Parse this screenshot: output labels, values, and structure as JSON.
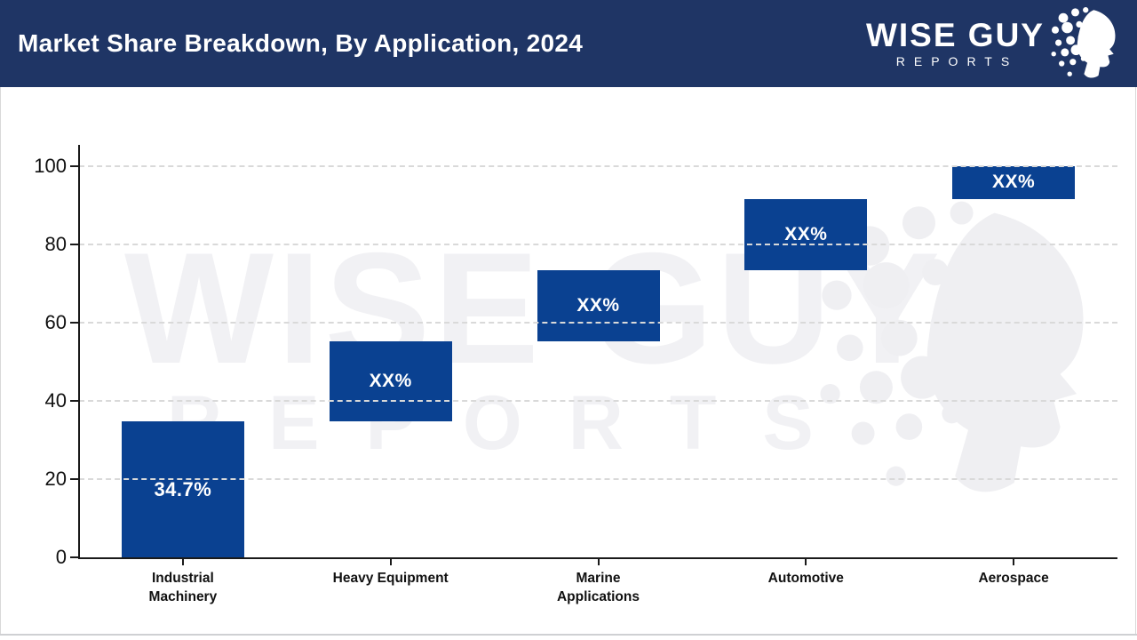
{
  "header": {
    "title": "Market Share Breakdown, By Application, 2024",
    "logo": {
      "line1": "WISE GUY",
      "line2": "REPORTS"
    }
  },
  "watermark": {
    "line1": "WISE GUY",
    "line2": "REPORTS"
  },
  "colors": {
    "header_bg": "#1f3565",
    "bar": "#0a4191",
    "bar_label": "#ffffff",
    "watermark": "#f1f1f4",
    "gridline": "#d9d9d9",
    "axis": "#1a1a1a"
  },
  "chart_data": {
    "type": "bar",
    "subtype": "waterfall",
    "title": "Market Share Breakdown, By Application, 2024",
    "categories": [
      "Industrial Machinery",
      "Heavy Equipment",
      "Marine Applications",
      "Automotive",
      "Aerospace"
    ],
    "category_label_lines": [
      [
        "Industrial",
        "Machinery"
      ],
      [
        "Heavy Equipment"
      ],
      [
        "Marine",
        "Applications"
      ],
      [
        "Automotive"
      ],
      [
        "Aerospace"
      ]
    ],
    "segments": [
      {
        "category": "Industrial Machinery",
        "start": 0,
        "end": 34.7,
        "value": 34.7,
        "label": "34.7%"
      },
      {
        "category": "Heavy Equipment",
        "start": 34.7,
        "end": 55.2,
        "value": 20.5,
        "label": "XX%"
      },
      {
        "category": "Marine Applications",
        "start": 55.2,
        "end": 73.4,
        "value": 18.2,
        "label": "XX%"
      },
      {
        "category": "Automotive",
        "start": 73.4,
        "end": 91.7,
        "value": 18.3,
        "label": "XX%"
      },
      {
        "category": "Aerospace",
        "start": 91.7,
        "end": 100,
        "value": 8.3,
        "label": "XX%"
      }
    ],
    "yticks": [
      0,
      20,
      40,
      60,
      80,
      100
    ],
    "ylim": [
      0,
      105.5
    ],
    "xlabel": "",
    "ylabel": "",
    "grid": {
      "horizontal": true,
      "style": "dashed",
      "drawn_over_bars": true
    },
    "legend": null,
    "bar_color": "#0a4191",
    "bar_label_color": "#ffffff"
  }
}
